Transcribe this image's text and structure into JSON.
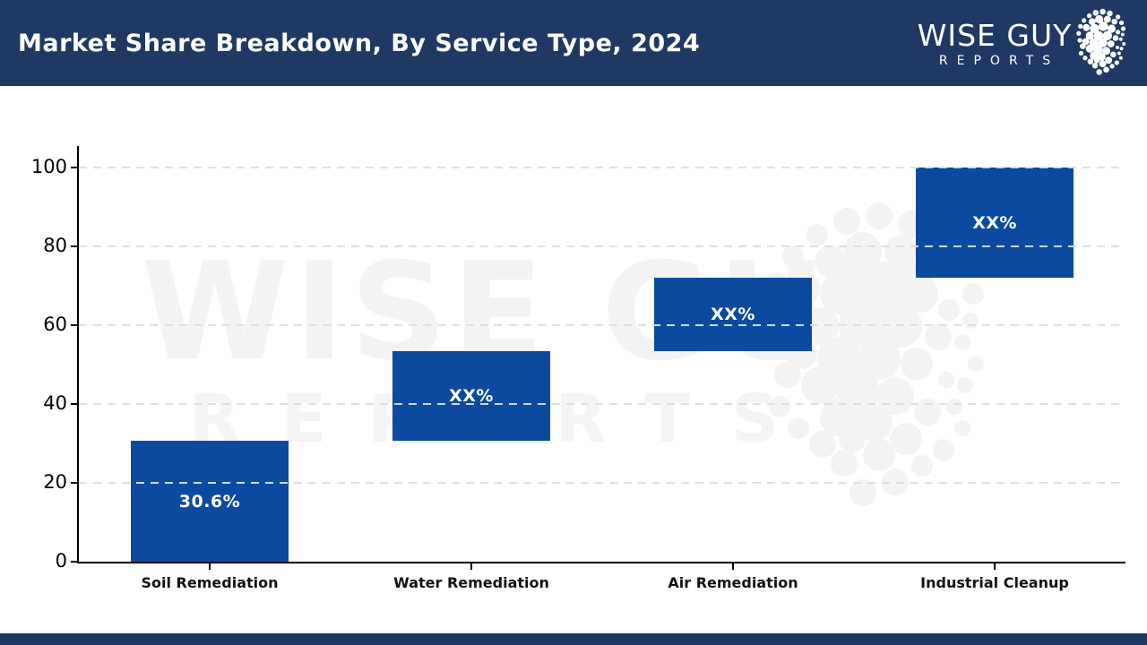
{
  "header": {
    "title": "Market Share Breakdown, By Service Type, 2024",
    "logo": {
      "line1": "WISE GUY",
      "line2": "REPORTS"
    }
  },
  "watermark": {
    "line1": "WISE GUY",
    "line2": "REPORTS"
  },
  "chart_data": {
    "type": "bar",
    "subtype": "waterfall",
    "title": "Market Share Breakdown, By Service Type, 2024",
    "unit": "%",
    "categories": [
      "Soil Remediation",
      "Water Remediation",
      "Air Remediation",
      "Industrial Cleanup"
    ],
    "segments": [
      {
        "category": "Soil Remediation",
        "start": 0,
        "end": 30.6,
        "label": "30.6%"
      },
      {
        "category": "Water Remediation",
        "start": 30.6,
        "end": 53.5,
        "label": "XX%"
      },
      {
        "category": "Air Remediation",
        "start": 53.5,
        "end": 72,
        "label": "XX%"
      },
      {
        "category": "Industrial Cleanup",
        "start": 72,
        "end": 100,
        "label": "XX%"
      }
    ],
    "yticks": [
      0,
      20,
      40,
      60,
      80,
      100
    ],
    "ylim": [
      0,
      105
    ],
    "grid": "horizontal-dashed",
    "legend": "none",
    "bar_color": "#0b4a9e"
  },
  "colors": {
    "header_bg": "#1f3864",
    "footer_bg": "#1f3864",
    "bar": "#0b4a9e",
    "bar_label_text": "#ffffff",
    "gridline": "#dddddd",
    "axis": "#000000",
    "watermark": "#f3f3f3",
    "title_text": "#ffffff"
  }
}
